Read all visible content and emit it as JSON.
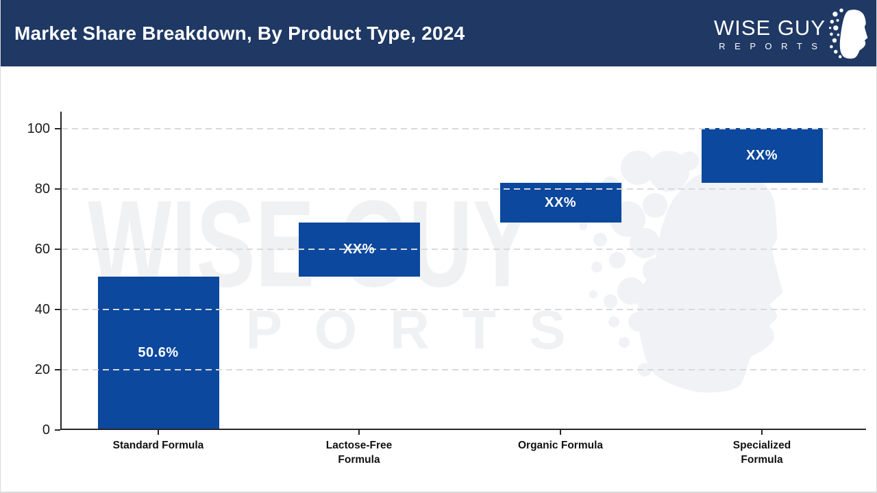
{
  "header": {
    "title": "Market Share Breakdown, By Product Type, 2024",
    "logo": {
      "line1": "WISE GUY",
      "line2": "R E P O R T S"
    }
  },
  "watermark": {
    "line1": "WISE GUY",
    "line2": "R E P O R T S"
  },
  "colors": {
    "header_bg": "#1F3864",
    "bar": "#0B489E",
    "bar_label_text": "#FFFFFF",
    "gridline": "#D9D9D9",
    "axis": "#262626",
    "watermark": "#F0F1F3"
  },
  "chart_data": {
    "type": "bar",
    "subtype": "waterfall",
    "title": "Market Share Breakdown, By Product Type, 2024",
    "categories": [
      "Standard Formula",
      "Lactose-Free Formula",
      "Organic Formula",
      "Specialized Formula"
    ],
    "category_label_lines": [
      [
        "Standard Formula"
      ],
      [
        "Lactose-Free",
        "Formula"
      ],
      [
        "Organic Formula"
      ],
      [
        "Specialized",
        "Formula"
      ]
    ],
    "segments": [
      {
        "category": "Standard Formula",
        "start": 0,
        "end": 50.6,
        "label": "50.6%"
      },
      {
        "category": "Lactose-Free Formula",
        "start": 50.6,
        "end": 68.6,
        "label": "XX%"
      },
      {
        "category": "Organic Formula",
        "start": 68.6,
        "end": 81.8,
        "label": "XX%"
      },
      {
        "category": "Specialized Formula",
        "start": 81.8,
        "end": 100,
        "label": "XX%"
      }
    ],
    "y_ticks": [
      0,
      20,
      40,
      60,
      80,
      100
    ],
    "ylim": [
      0,
      100
    ],
    "xlabel": "",
    "ylabel": "",
    "grid": "dashed-horizontal",
    "legend": "none"
  }
}
